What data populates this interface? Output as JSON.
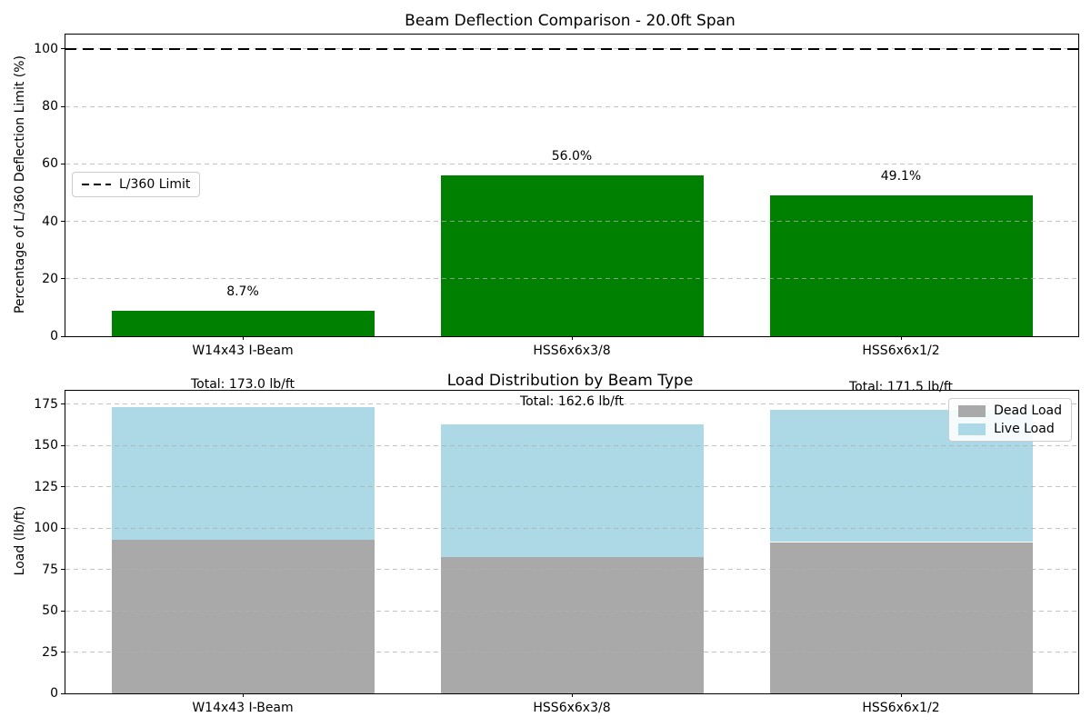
{
  "figure": {
    "background": "#ffffff"
  },
  "chart_data": [
    {
      "type": "bar",
      "title": "Beam Deflection Comparison - 20.0ft Span",
      "ylabel": "Percentage of L/360 Deflection Limit (%)",
      "xlabel": "",
      "categories": [
        "W14x43 I-Beam",
        "HSS6x6x3/8",
        "HSS6x6x1/2"
      ],
      "values": [
        8.7,
        56.0,
        49.1
      ],
      "bar_labels": [
        "8.7%",
        "56.0%",
        "49.1%"
      ],
      "bar_color": "#008000",
      "yticks": [
        0,
        20,
        40,
        60,
        80,
        100
      ],
      "ylim": [
        0,
        105
      ],
      "grid": "dashed-horizontal",
      "reference_line": {
        "value": 100,
        "style": "dashed",
        "color": "#000000"
      },
      "legend": {
        "position": "center-left",
        "entries": [
          {
            "label": "L/360 Limit",
            "marker": "dashed-line",
            "color": "#000000"
          }
        ]
      }
    },
    {
      "type": "stacked-bar",
      "title": "Load Distribution by Beam Type",
      "ylabel": "Load (lb/ft)",
      "xlabel": "",
      "categories": [
        "W14x43 I-Beam",
        "HSS6x6x3/8",
        "HSS6x6x1/2"
      ],
      "series": [
        {
          "name": "Dead Load",
          "color": "#a9a9a9",
          "values": [
            93.0,
            82.6,
            91.5
          ]
        },
        {
          "name": "Live Load",
          "color": "#add8e6",
          "values": [
            80.0,
            80.0,
            80.0
          ]
        }
      ],
      "totals": [
        173.0,
        162.6,
        171.5
      ],
      "total_labels": [
        "Total: 173.0 lb/ft",
        "Total: 162.6 lb/ft",
        "Total: 171.5 lb/ft"
      ],
      "yticks": [
        0,
        25,
        50,
        75,
        100,
        125,
        150,
        175
      ],
      "ylim": [
        0,
        183
      ],
      "grid": "dashed-horizontal",
      "legend": {
        "position": "top-right",
        "entries": [
          {
            "label": "Dead Load",
            "marker": "patch",
            "color": "#a9a9a9"
          },
          {
            "label": "Live Load",
            "marker": "patch",
            "color": "#add8e6"
          }
        ]
      }
    }
  ]
}
